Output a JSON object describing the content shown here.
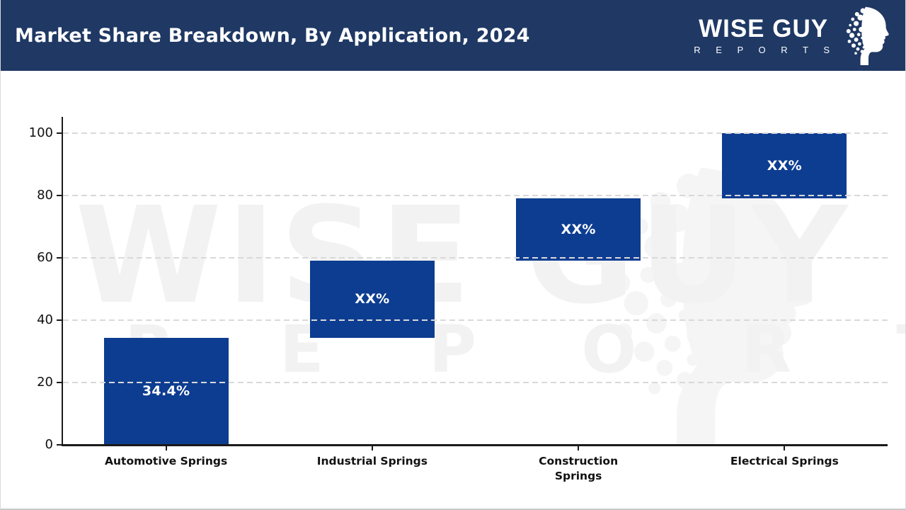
{
  "header": {
    "title": "Market Share Breakdown, By Application, 2024",
    "brand_name": "WISE GUY",
    "brand_sub": "R E P O R T S"
  },
  "watermark": {
    "line1": "WISE GUY",
    "line2": "R E P O R T S"
  },
  "colors": {
    "header_bg": "#1f3864",
    "bar": "#0d3d91",
    "grid": "#d9d9d9",
    "axis": "#1a1a1a",
    "watermark": "#f2f2f2",
    "bar_label": "#ffffff"
  },
  "chart_data": {
    "type": "bar",
    "subtype": "waterfall",
    "title": "Market Share Breakdown, By Application, 2024",
    "categories": [
      "Automotive Springs",
      "Industrial Springs",
      "Construction\nSprings",
      "Electrical Springs"
    ],
    "segments": [
      {
        "category": "Automotive Springs",
        "start": 0,
        "end": 34.4,
        "label": "34.4%"
      },
      {
        "category": "Industrial Springs",
        "start": 34.4,
        "end": 59.2,
        "label": "XX%"
      },
      {
        "category": "Construction Springs",
        "start": 59.2,
        "end": 79.0,
        "label": "XX%"
      },
      {
        "category": "Electrical Springs",
        "start": 79.0,
        "end": 100.0,
        "label": "XX%"
      }
    ],
    "ylim": [
      0,
      105
    ],
    "yticks": [
      0,
      20,
      40,
      60,
      80,
      100
    ],
    "grid": "dashed horizontal, drawn over bars",
    "legend": "none",
    "xlabel": "",
    "ylabel": ""
  }
}
